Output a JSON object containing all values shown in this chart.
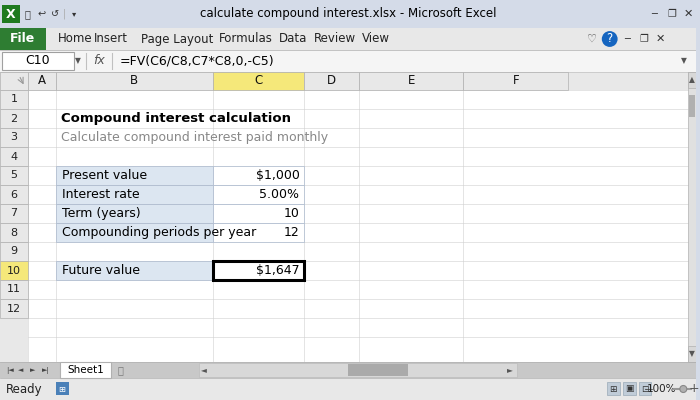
{
  "title_bar": "calculate compound interest.xlsx - Microsoft Excel",
  "cell_ref": "C10",
  "formula": "=FV(C6/C8,C7*C8,0,-C5)",
  "menu_items": [
    "File",
    "Home",
    "Insert",
    "Page Layout",
    "Formulas",
    "Data",
    "Review",
    "View"
  ],
  "col_headers": [
    "A",
    "B",
    "C",
    "D",
    "E",
    "F"
  ],
  "row_count": 12,
  "heading": "Compound interest calculation",
  "subheading": "Calculate compound interest paid monthly",
  "table_rows": [
    {
      "label": "Present value",
      "value": "$1,000"
    },
    {
      "label": "Interest rate",
      "value": "5.00%"
    },
    {
      "label": "Term (years)",
      "value": "10"
    },
    {
      "label": "Compounding periods per year",
      "value": "12"
    }
  ],
  "result_label": "Future value",
  "result_value": "$1,647",
  "active_col_idx": 2,
  "active_row": 10,
  "table_bg": "#dce6f1",
  "table_border": "#aab8cc",
  "active_col_header_bg": "#f5e87a",
  "active_row_header_bg": "#f5e87a",
  "grid_line_color": "#d0d0d0",
  "title_bar_bg": "#d4dbe8",
  "ribbon_bg": "#e8e8e8",
  "file_btn_color": "#2e7d32",
  "formula_bar_bg": "#f5f5f5",
  "header_bg": "#e8e8e8",
  "header_border": "#b0b0b0",
  "status_bar_bg": "#e8e8e8",
  "tab_bg": "#d0d0d0",
  "sheet_tab_bg": "#ffffff",
  "scrollbar_bg": "#e0e0e0",
  "scrollbar_thumb": "#b0b0b0"
}
